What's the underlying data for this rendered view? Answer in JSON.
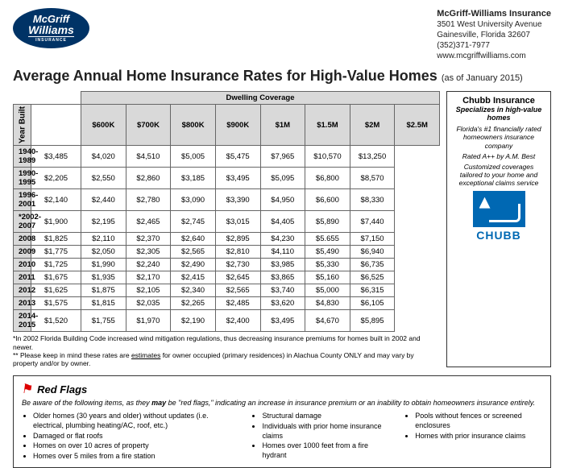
{
  "header": {
    "company_name": "McGriff-Williams Insurance",
    "address1": "3501 West University Avenue",
    "address2": "Gainesville, Florida 32607",
    "phone": "(352)371-7977",
    "website": "www.mcgriffwilliams.com",
    "logo_top": "McGriff",
    "logo_bottom": "Williams",
    "logo_sub": "INSURANCE"
  },
  "title": "Average Annual Home Insurance Rates for High-Value Homes",
  "asof": "(as of January 2015)",
  "table": {
    "group_header": "Dwelling Coverage",
    "side_header": "Year Built",
    "cols": [
      "$600K",
      "$700K",
      "$800K",
      "$900K",
      "$1M",
      "$1.5M",
      "$2M",
      "$2.5M"
    ],
    "rows": [
      {
        "label": "1940-1989",
        "v": [
          "$3,485",
          "$4,020",
          "$4,510",
          "$5,005",
          "$5,475",
          "$7,965",
          "$10,570",
          "$13,250"
        ]
      },
      {
        "label": "1990-1995",
        "v": [
          "$2,205",
          "$2,550",
          "$2,860",
          "$3,185",
          "$3,495",
          "$5,095",
          "$6,800",
          "$8,570"
        ]
      },
      {
        "label": "1996-2001",
        "v": [
          "$2,140",
          "$2,440",
          "$2,780",
          "$3,090",
          "$3,390",
          "$4,950",
          "$6,600",
          "$8,330"
        ]
      },
      {
        "label": "*2002-2007",
        "v": [
          "$1,900",
          "$2,195",
          "$2,465",
          "$2,745",
          "$3,015",
          "$4,405",
          "$5,890",
          "$7,440"
        ]
      },
      {
        "label": "2008",
        "v": [
          "$1,825",
          "$2,110",
          "$2,370",
          "$2,640",
          "$2,895",
          "$4,230",
          "$5.655",
          "$7,150"
        ]
      },
      {
        "label": "2009",
        "v": [
          "$1,775",
          "$2,050",
          "$2,305",
          "$2,565",
          "$2,810",
          "$4,110",
          "$5,490",
          "$6,940"
        ]
      },
      {
        "label": "2010",
        "v": [
          "$1,725",
          "$1,990",
          "$2,240",
          "$2,490",
          "$2,730",
          "$3,985",
          "$5,330",
          "$6,735"
        ]
      },
      {
        "label": "2011",
        "v": [
          "$1,675",
          "$1,935",
          "$2,170",
          "$2,415",
          "$2,645",
          "$3,865",
          "$5,160",
          "$6,525"
        ]
      },
      {
        "label": "2012",
        "v": [
          "$1,625",
          "$1,875",
          "$2,105",
          "$2,340",
          "$2,565",
          "$3,740",
          "$5,000",
          "$6,315"
        ]
      },
      {
        "label": "2013",
        "v": [
          "$1,575",
          "$1,815",
          "$2,035",
          "$2,265",
          "$2,485",
          "$3,620",
          "$4,830",
          "$6,105"
        ]
      },
      {
        "label": "2014-2015",
        "v": [
          "$1,520",
          "$1,755",
          "$1,970",
          "$2,190",
          "$2,400",
          "$3,495",
          "$4,670",
          "$5,895"
        ]
      }
    ]
  },
  "footnote1": "*In 2002 Florida Building Code increased wind mitigation regulations, thus decreasing insurance premiums for homes built in 2002 and newer.",
  "footnote2a": "** Please keep in mind these rates are ",
  "footnote2u": "estimates",
  "footnote2b": " for owner occupied (primary residences) in Alachua County ONLY and may vary by property and/or by owner.",
  "sidebar": {
    "brand": "Chubb Insurance",
    "specializes": "Specializes in high-value homes",
    "p1": "Florida's #1 financially rated homeowners insurance company",
    "p2": "Rated A++ by A.M. Best",
    "p3": "Customized coverages tailored to your home and exceptional claims service",
    "logo_text": "CHUBB"
  },
  "redflags": {
    "heading": "Red Flags",
    "intro_a": "Be aware of the following items, as they ",
    "intro_b": "may",
    "intro_c": " be \"red flags,\" indicating an increase in insurance premium or an inability to obtain homeowners insurance entirely.",
    "col1": [
      "Older homes (30 years and older) without updates (i.e. electrical, plumbing heating/AC, roof, etc.)",
      "Damaged or flat roofs",
      "Homes on over 10 acres of property",
      "Homes over 5 miles from a fire station"
    ],
    "col2": [
      "Structural damage",
      "Individuals with prior home insurance claims",
      "Homes over 1000 feet from a fire hydrant"
    ],
    "col3": [
      "Pools without fences or screened enclosures",
      "Homes with prior insurance claims"
    ]
  }
}
